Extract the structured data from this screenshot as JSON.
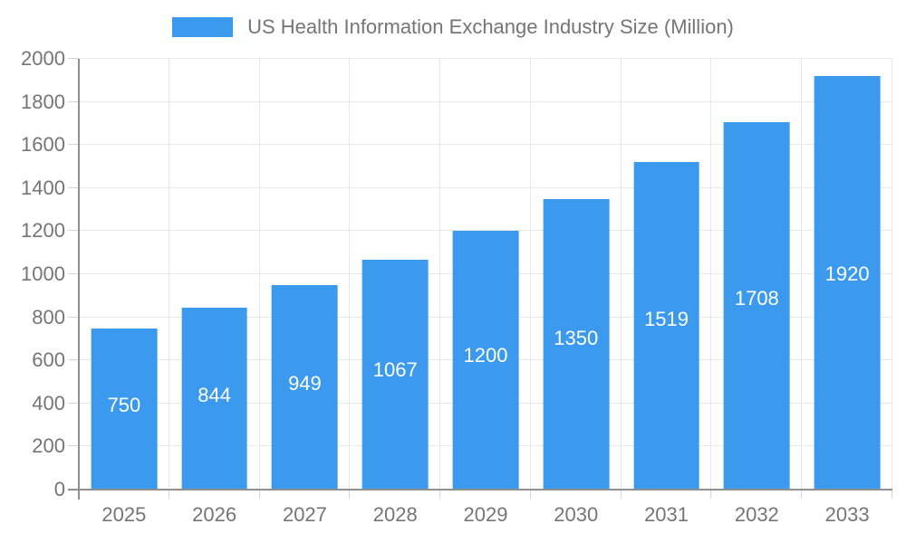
{
  "legend": {
    "swatch_color": "#3b9aed",
    "label": "US Health Information Exchange Industry Size (Million)"
  },
  "chart_data": {
    "type": "bar",
    "title": "US Health Information Exchange Industry Size (Million)",
    "categories": [
      "2025",
      "2026",
      "2027",
      "2028",
      "2029",
      "2030",
      "2031",
      "2032",
      "2033"
    ],
    "values": [
      750,
      844,
      949,
      1067,
      1200,
      1350,
      1519,
      1708,
      1920
    ],
    "bar_labels": [
      "750",
      "844",
      "949",
      "1067",
      "1200",
      "1350",
      "1519",
      "1708",
      "1920"
    ],
    "xlabel": "",
    "ylabel": "",
    "ylim": [
      0,
      2000
    ],
    "ytick_step": 200,
    "yticks": [
      0,
      200,
      400,
      600,
      800,
      1000,
      1200,
      1400,
      1600,
      1800,
      2000
    ],
    "grid": true,
    "legend_position": "top"
  },
  "colors": {
    "bar": "#3b9aed",
    "bar_label": "#ffffff",
    "axis_text": "#757575",
    "gridline": "#e8e8e8",
    "axis_line": "#8f8f8f",
    "tick": "#d4d4d4",
    "background": "#ffffff"
  }
}
